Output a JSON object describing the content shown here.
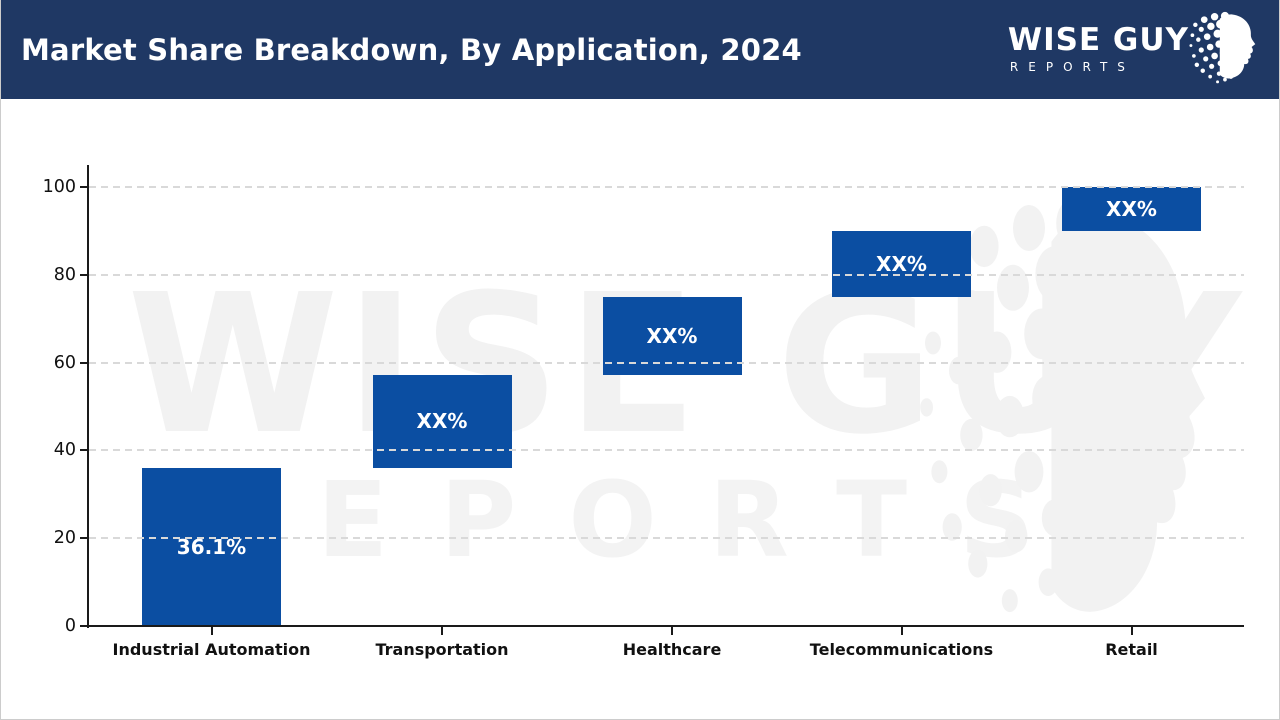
{
  "header": {
    "title": "Market Share Breakdown, By Application, 2024",
    "brand": {
      "wordmark": "WISE GUY",
      "subtext": "REPORTS"
    }
  },
  "watermark": {
    "wordmark": "WISE GUY",
    "subtext": "REPORTS"
  },
  "chart_data": {
    "type": "bar",
    "subtype": "waterfall",
    "title": "Market Share Breakdown, By Application, 2024",
    "categories": [
      "Industrial Automation",
      "Transportation",
      "Healthcare",
      "Telecommunications",
      "Retail"
    ],
    "bars": [
      {
        "category": "Industrial Automation",
        "start": 0,
        "end": 36.1,
        "value": 36.1,
        "label": "36.1%"
      },
      {
        "category": "Transportation",
        "start": 36.1,
        "end": 57.1,
        "value": 21.0,
        "label": "XX%"
      },
      {
        "category": "Healthcare",
        "start": 57.1,
        "end": 75.0,
        "value": 17.9,
        "label": "XX%"
      },
      {
        "category": "Telecommunications",
        "start": 75.0,
        "end": 90.0,
        "value": 15.0,
        "label": "XX%"
      },
      {
        "category": "Retail",
        "start": 90.0,
        "end": 100.0,
        "value": 10.0,
        "label": "XX%"
      }
    ],
    "xlabel": "",
    "ylabel": "",
    "yticks": [
      0,
      20,
      40,
      60,
      80,
      100
    ],
    "ylim": [
      0,
      105
    ],
    "grid": {
      "horizontal": true,
      "style": "dashed",
      "above_bars": true
    },
    "legend": "none",
    "colors": {
      "bar": "#0b4ea2",
      "bar_label": "#ffffff",
      "axis": "#1a1a1a",
      "gridline": "#d9d9d9",
      "header_banner": "#1f3864",
      "watermark": "#f2f2f2"
    }
  }
}
